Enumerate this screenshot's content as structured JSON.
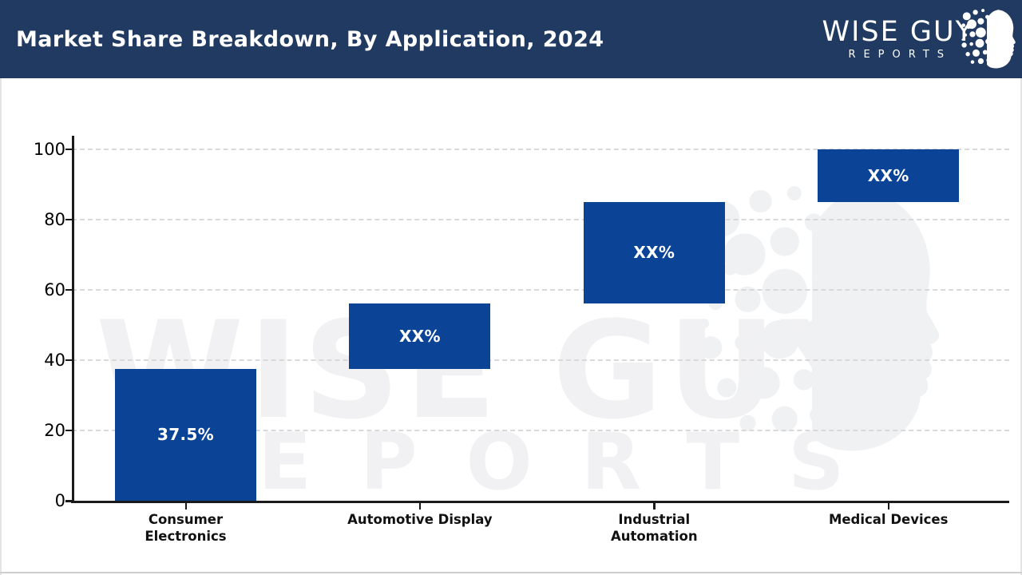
{
  "header": {
    "title": "Market Share Breakdown, By Application, 2024",
    "bg_color": "#213a61",
    "logo": {
      "line1": "WISE GUY",
      "line2": "REPORTS"
    }
  },
  "watermark": {
    "line1": "WISE GUY",
    "line2": "REPORTS"
  },
  "chart_data": {
    "type": "bar",
    "subtype": "waterfall-floating-bars",
    "title": "Market Share Breakdown, By Application, 2024",
    "categories": [
      "Consumer Electronics",
      "Automotive Display",
      "Industrial Automation",
      "Medical Devices"
    ],
    "xtick_labels": [
      "Consumer\nElectronics",
      "Automotive Display",
      "Industrial\nAutomation",
      "Medical Devices"
    ],
    "bars": [
      {
        "category": "Consumer Electronics",
        "start": 0,
        "end": 37.5,
        "label": "37.5%"
      },
      {
        "category": "Automotive Display",
        "start": 37.5,
        "end": 56,
        "label": "XX%"
      },
      {
        "category": "Industrial Automation",
        "start": 56,
        "end": 85,
        "label": "XX%"
      },
      {
        "category": "Medical Devices",
        "start": 85,
        "end": 100,
        "label": "XX%"
      }
    ],
    "ylim": [
      0,
      100
    ],
    "yticks": [
      0,
      20,
      40,
      60,
      80,
      100
    ],
    "grid": "horizontal-dashed",
    "legend": "none",
    "bar_color": "#0b4397",
    "bar_label_color": "#ffffff",
    "axis_color": "#1a1a1a",
    "grid_color": "#d9d9d9",
    "ylabel": "",
    "xlabel": ""
  }
}
